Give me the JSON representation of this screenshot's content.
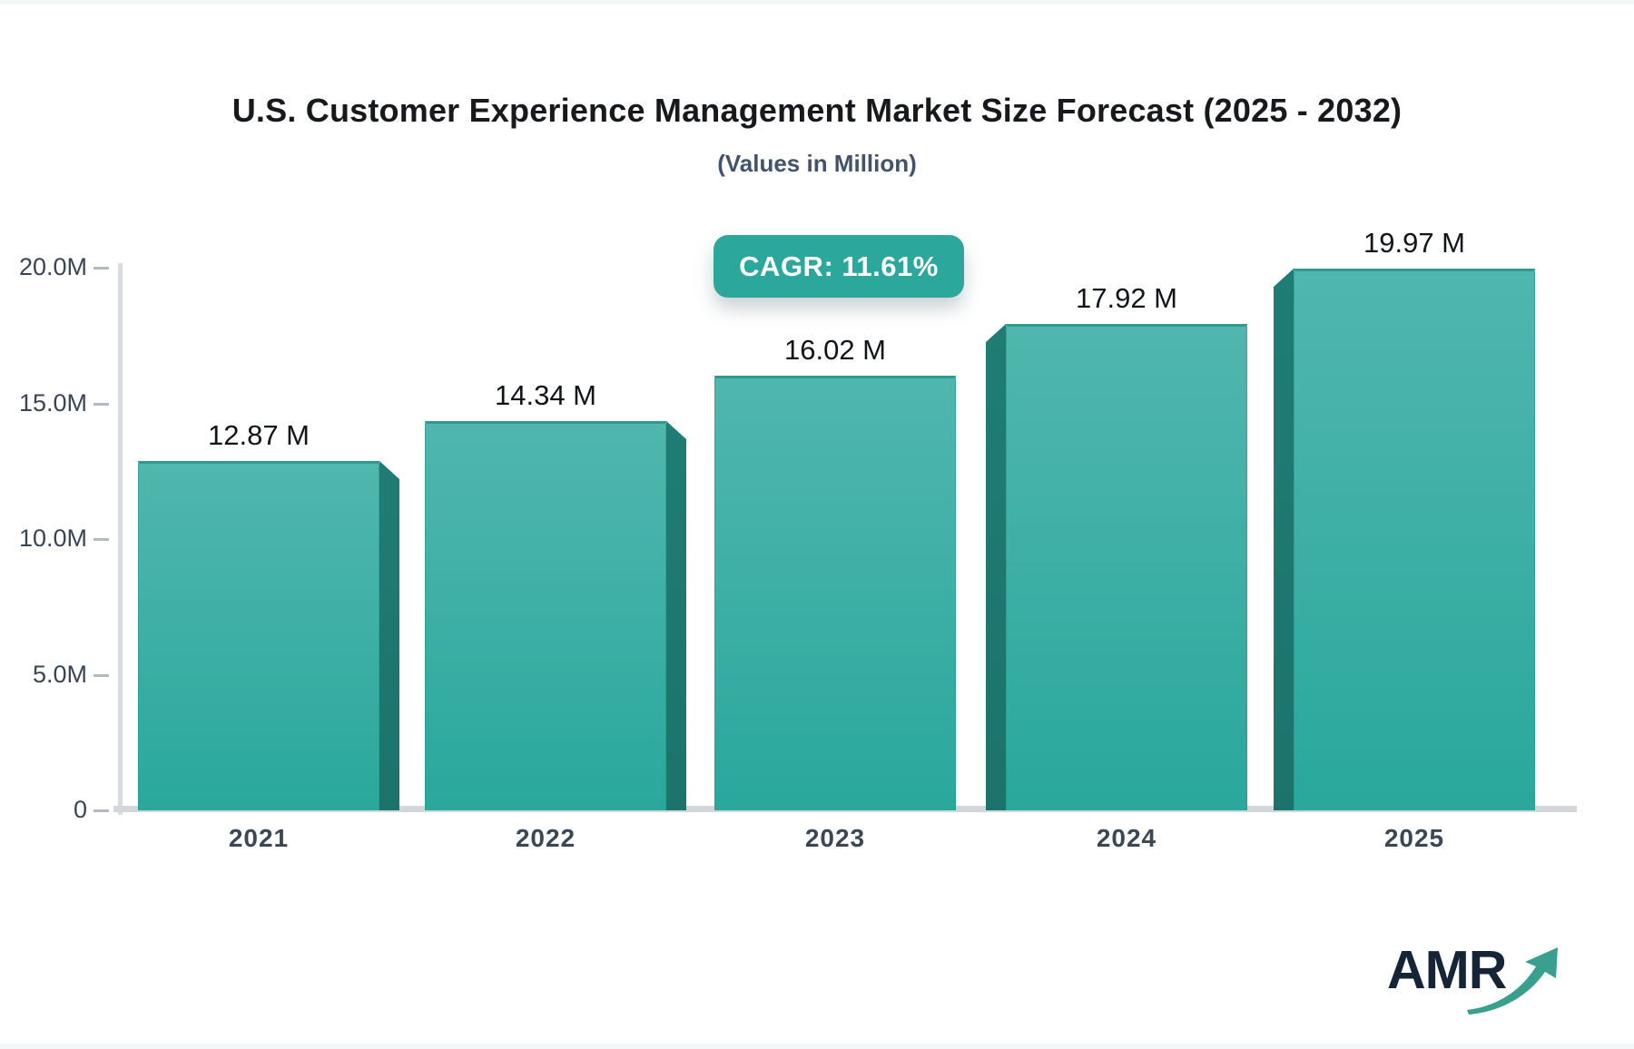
{
  "page": {
    "title": "U.S. Customer Experience Management Market Size Forecast (2025 - 2032)",
    "subtitle": "(Values in Million)"
  },
  "badge": {
    "label": "CAGR: 11.61%",
    "bg_color": "#2ba79c",
    "text_color": "#ffffff"
  },
  "chart_data": {
    "type": "bar",
    "title": "U.S. Customer Experience Management Market Size Forecast (2025 - 2032)",
    "subtitle": "(Values in Million)",
    "unit": "Million",
    "categories": [
      "2021",
      "2022",
      "2023",
      "2024",
      "2025"
    ],
    "values": [
      12.87,
      14.34,
      16.02,
      17.92,
      19.97
    ],
    "value_labels": [
      "12.87 M",
      "14.34 M",
      "16.02 M",
      "17.92 M",
      "19.97 M"
    ],
    "xlabel": "",
    "ylabel": "",
    "ylim": [
      0,
      20
    ],
    "y_ticks": [
      {
        "label": "0",
        "value": 0
      },
      {
        "label": "5.0M",
        "value": 5
      },
      {
        "label": "10.0M",
        "value": 10
      },
      {
        "label": "15.0M",
        "value": 15
      },
      {
        "label": "20.0M",
        "value": 20
      }
    ],
    "grid": false,
    "legend_position": "none",
    "cagr": "11.61%",
    "bar_color_top": "#50b6ae",
    "bar_color_bottom": "#29a89b",
    "bar_side_color": "#1f7d75",
    "bar_border_color": "#2f9a90"
  },
  "logo": {
    "text": "AMR",
    "text_color": "#152536",
    "arrow_color": "#38a08d"
  }
}
